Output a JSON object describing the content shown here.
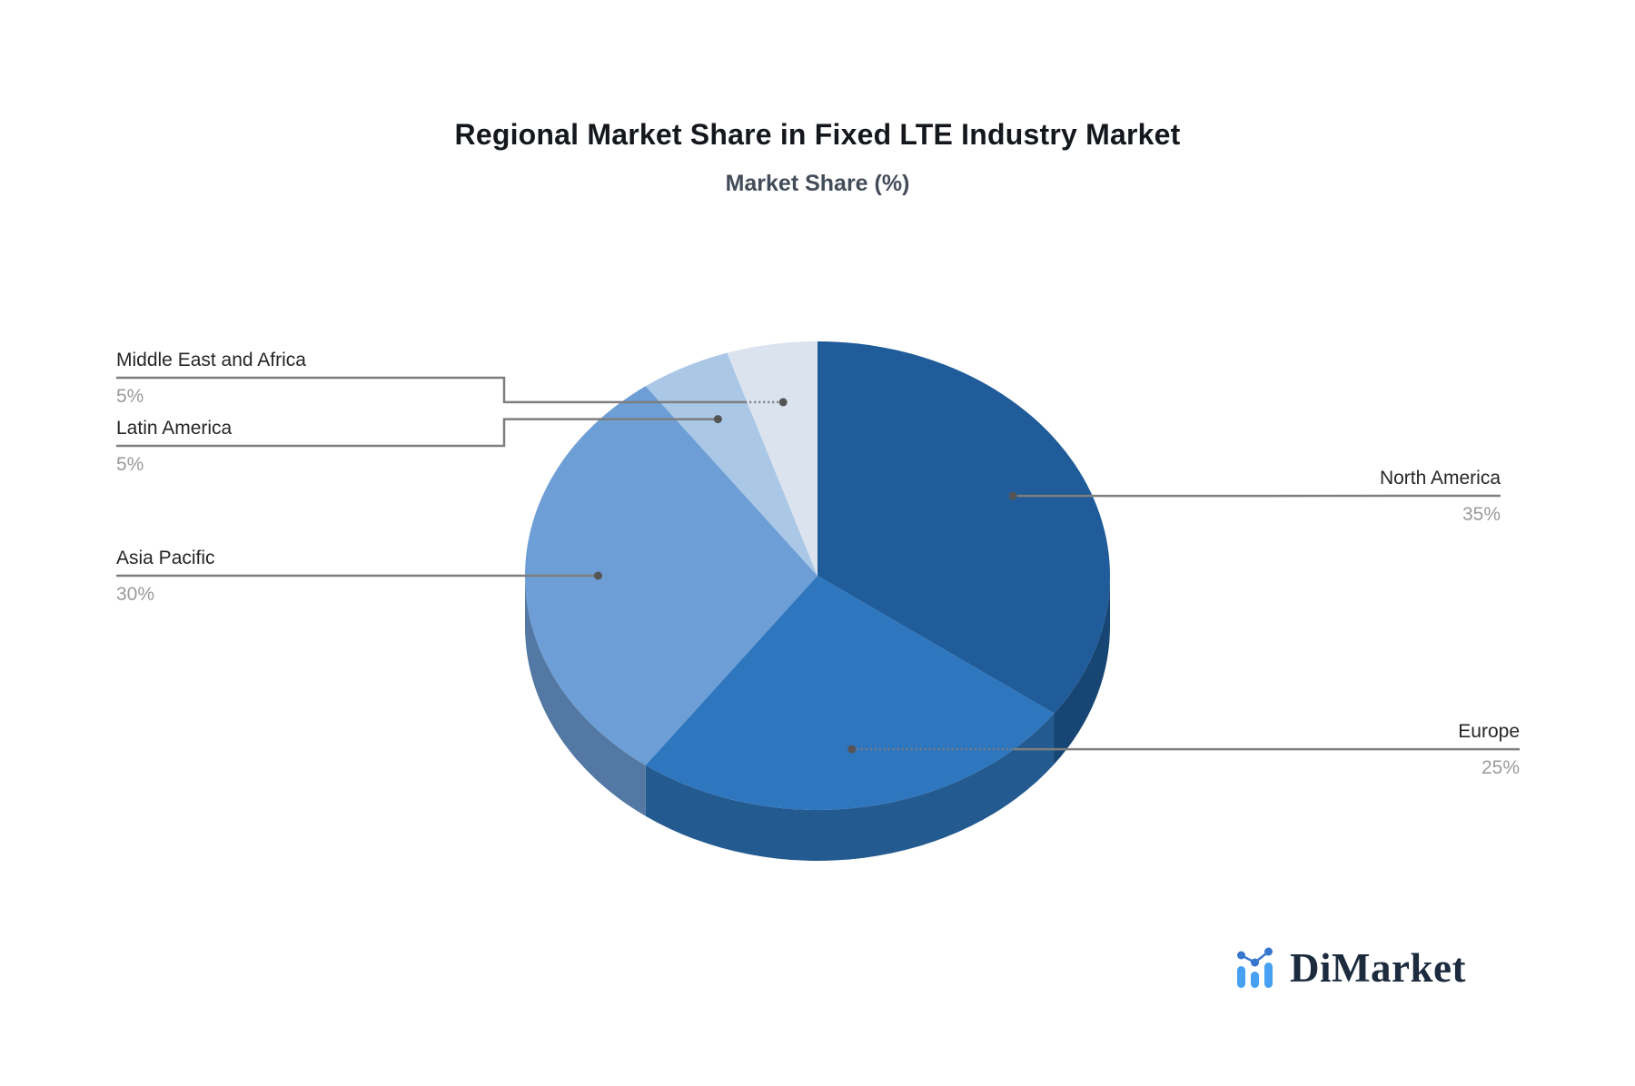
{
  "chart_data": {
    "type": "pie",
    "title": "Regional Market Share in Fixed LTE Industry Market",
    "subtitle": "Market Share (%)",
    "value_suffix": "%",
    "direction": "clockwise",
    "start_angle_deg": 0,
    "effect_3d": true,
    "legend_position": "none",
    "slices": [
      {
        "label": "North America",
        "value": 35,
        "color": "#1f5c99"
      },
      {
        "label": "Europe",
        "value": 25,
        "color": "#2e76be"
      },
      {
        "label": "Asia Pacific",
        "value": 30,
        "color": "#6d9ed6"
      },
      {
        "label": "Latin America",
        "value": 5,
        "color": "#aac8e6"
      },
      {
        "label": "Middle East and Africa",
        "value": 5,
        "color": "#dbe3ef"
      }
    ],
    "label_text_color": "#262626",
    "label_value_color": "#9b9b9b",
    "connector_color": "#7e7e7e",
    "connector_dot_color": "#555555"
  },
  "branding": {
    "logo_text": "DiMarket",
    "logo_text_color": "#1c2b3e",
    "logo_accent": "#47a0f2",
    "logo_accent_dark": "#3777cf"
  }
}
